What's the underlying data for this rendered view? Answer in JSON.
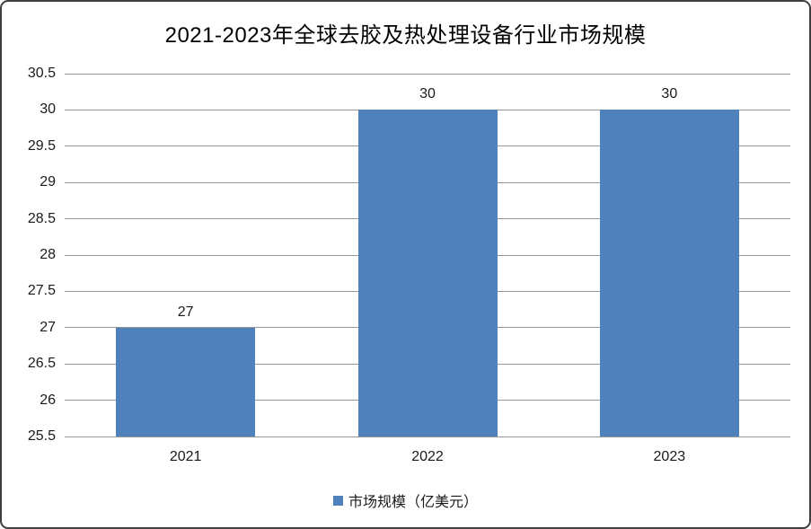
{
  "chart_data": {
    "type": "bar",
    "title": "2021-2023年全球去胶及热处理设备行业市场规模",
    "categories": [
      "2021",
      "2022",
      "2023"
    ],
    "values": [
      27,
      30,
      30
    ],
    "bar_value_labels": [
      "27",
      "30",
      "30"
    ],
    "legend": "市场规模（亿美元）",
    "legend_position": "bottom",
    "xlabel": "",
    "ylabel": "",
    "ylim": [
      25.5,
      30.5
    ],
    "ytick_step": 0.5,
    "ytick_labels": [
      "25.5",
      "26",
      "26.5",
      "27",
      "27.5",
      "28",
      "28.5",
      "29",
      "29.5",
      "30",
      "30.5"
    ],
    "grid": true,
    "colors": {
      "bar": "#4f81bd",
      "gridline": "#969696",
      "border": "#3f3f3f",
      "text": "#1a1a1a"
    }
  }
}
